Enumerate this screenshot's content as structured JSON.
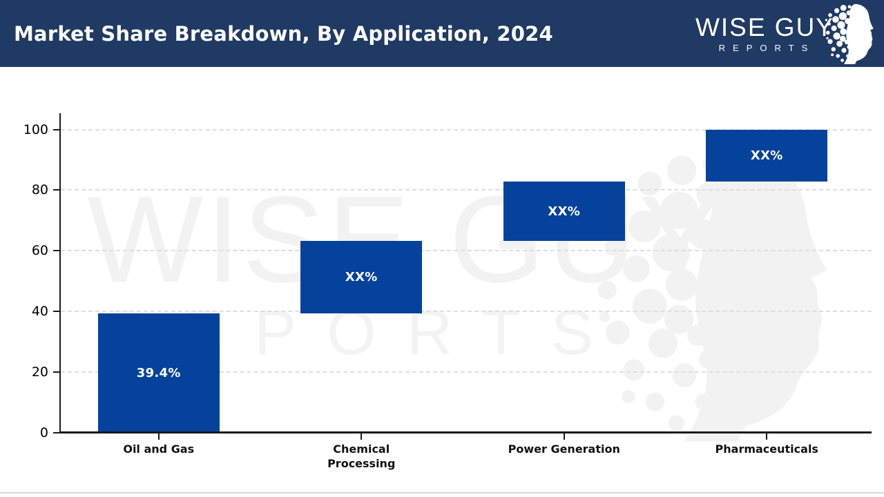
{
  "header": {
    "title": "Market Share Breakdown, By Application, 2024",
    "bg_color": "#1f3a63",
    "logo": {
      "line1": "WISE GUY",
      "line2": "REPORTS"
    }
  },
  "watermark": {
    "line1": "WISE GUY",
    "line2": "REPORTS"
  },
  "chart_data": {
    "type": "bar",
    "subtype": "waterfall-stacked",
    "title": "Market Share Breakdown, By Application, 2024",
    "categories": [
      "Oil and Gas",
      "Chemical Processing",
      "Power Generation",
      "Pharmaceuticals"
    ],
    "segments": [
      {
        "category": "Oil and Gas",
        "label_lines": [
          "Oil and Gas"
        ],
        "start": 0,
        "end": 39.4,
        "label": "39.4%"
      },
      {
        "category": "Chemical Processing",
        "label_lines": [
          "Chemical",
          "Processing"
        ],
        "start": 39.4,
        "end": 63.2,
        "label": "XX%"
      },
      {
        "category": "Power Generation",
        "label_lines": [
          "Power Generation"
        ],
        "start": 63.2,
        "end": 82.8,
        "label": "XX%"
      },
      {
        "category": "Pharmaceuticals",
        "label_lines": [
          "Pharmaceuticals"
        ],
        "start": 82.8,
        "end": 100,
        "label": "XX%"
      }
    ],
    "yticks": [
      0,
      20,
      40,
      60,
      80,
      100
    ],
    "ylim": [
      0,
      100
    ],
    "xlabel": "",
    "ylabel": "",
    "bar_color": "#05429c",
    "axis_color": "#1a1a1a",
    "gridline_color": "#dedede",
    "grid": "dashed-horizontal",
    "legend": "none"
  }
}
